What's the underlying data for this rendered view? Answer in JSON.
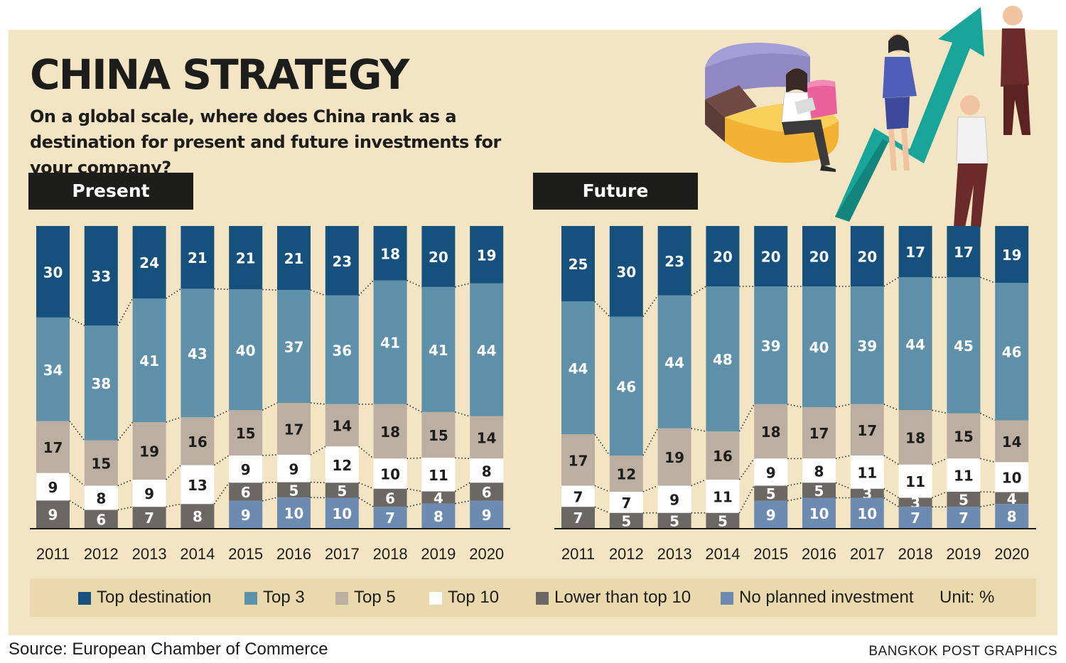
{
  "title": "CHINA STRATEGY",
  "subtitle": "On a global scale, where does China rank as a destination for present and future investments for your company?",
  "panels": {
    "present": "Present",
    "future": "Future"
  },
  "unit_label": "Unit: %",
  "source": "Source: European Chamber of Commerce",
  "credit": "BANGKOK POST GRAPHICS",
  "colors": {
    "top_destination": "#16507c",
    "top_3": "#5f90a9",
    "top_5": "#bcaea0",
    "top_10": "#ffffff",
    "lower_than_top_10": "#6b6864",
    "no_planned_investment": "#6d8bb0",
    "background": "#f3e5c4",
    "legend_background": "#ead9ad"
  },
  "chart_data": [
    {
      "type": "bar",
      "stacked": true,
      "panel": "Present",
      "categories": [
        "2011",
        "2012",
        "2013",
        "2014",
        "2015",
        "2016",
        "2017",
        "2018",
        "2019",
        "2020"
      ],
      "series": [
        {
          "name": "Top destination",
          "values": [
            30,
            33,
            24,
            21,
            21,
            21,
            23,
            18,
            20,
            19
          ]
        },
        {
          "name": "Top 3",
          "values": [
            34,
            38,
            41,
            43,
            40,
            37,
            36,
            41,
            41,
            44
          ]
        },
        {
          "name": "Top 5",
          "values": [
            17,
            15,
            19,
            16,
            15,
            17,
            14,
            18,
            15,
            14
          ]
        },
        {
          "name": "Top 10",
          "values": [
            9,
            8,
            9,
            13,
            9,
            9,
            12,
            10,
            11,
            8
          ]
        },
        {
          "name": "Lower than top 10",
          "values": [
            9,
            6,
            7,
            8,
            6,
            5,
            5,
            6,
            4,
            6
          ]
        },
        {
          "name": "No planned investment",
          "values": [
            null,
            null,
            null,
            null,
            9,
            10,
            10,
            7,
            8,
            9
          ]
        }
      ],
      "unit": "%"
    },
    {
      "type": "bar",
      "stacked": true,
      "panel": "Future",
      "categories": [
        "2011",
        "2012",
        "2013",
        "2014",
        "2015",
        "2016",
        "2017",
        "2018",
        "2019",
        "2020"
      ],
      "series": [
        {
          "name": "Top destination",
          "values": [
            25,
            30,
            23,
            20,
            20,
            20,
            20,
            17,
            17,
            19
          ]
        },
        {
          "name": "Top 3",
          "values": [
            44,
            46,
            44,
            48,
            39,
            40,
            39,
            44,
            45,
            46
          ]
        },
        {
          "name": "Top 5",
          "values": [
            17,
            12,
            19,
            16,
            18,
            17,
            17,
            18,
            15,
            14
          ]
        },
        {
          "name": "Top 10",
          "values": [
            7,
            7,
            9,
            11,
            9,
            8,
            11,
            11,
            11,
            10
          ]
        },
        {
          "name": "Lower than top 10",
          "values": [
            7,
            5,
            5,
            5,
            5,
            5,
            3,
            3,
            5,
            4
          ]
        },
        {
          "name": "No planned investment",
          "values": [
            null,
            null,
            null,
            null,
            9,
            10,
            10,
            7,
            7,
            8
          ]
        }
      ],
      "unit": "%"
    }
  ]
}
